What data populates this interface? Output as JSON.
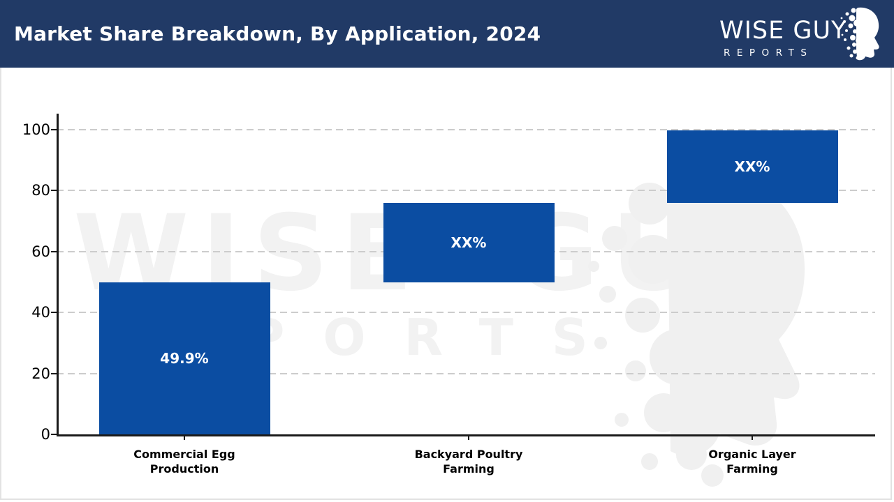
{
  "header": {
    "title": "Market Share Breakdown, By Application, 2024",
    "logo": {
      "line1": "WISE GUY",
      "line2": "REPORTS"
    },
    "background": "#213A66"
  },
  "watermark": {
    "line1": "WISE GUY",
    "line2": "REPORTS"
  },
  "colors": {
    "header_bg": "#213A66",
    "bar": "#0B4DA2",
    "bar_label": "#FFFFFF",
    "grid": "#CCCCCC",
    "axis": "#1A1A1A",
    "watermark": "#F2F2F2"
  },
  "chart_data": {
    "type": "bar",
    "subtype": "waterfall",
    "title": "Market Share Breakdown, By Application, 2024",
    "xlabel": "",
    "ylabel": "",
    "categories": [
      "Commercial Egg\nProduction",
      "Backyard Poultry\nFarming",
      "Organic Layer\nFarming"
    ],
    "segments": [
      {
        "category": "Commercial Egg Production",
        "start": 0,
        "end": 49.9,
        "label": "49.9%"
      },
      {
        "category": "Backyard Poultry Farming",
        "start": 49.9,
        "end": 76.0,
        "label": "XX%"
      },
      {
        "category": "Organic Layer Farming",
        "start": 76.0,
        "end": 99.8,
        "label": "XX%"
      }
    ],
    "yticks": [
      0,
      20,
      40,
      60,
      80,
      100
    ],
    "ylim": [
      0,
      105
    ],
    "grid": "horizontal-dashed",
    "legend": "none",
    "bar_color": "#0B4DA2",
    "label_color": "#FFFFFF"
  }
}
